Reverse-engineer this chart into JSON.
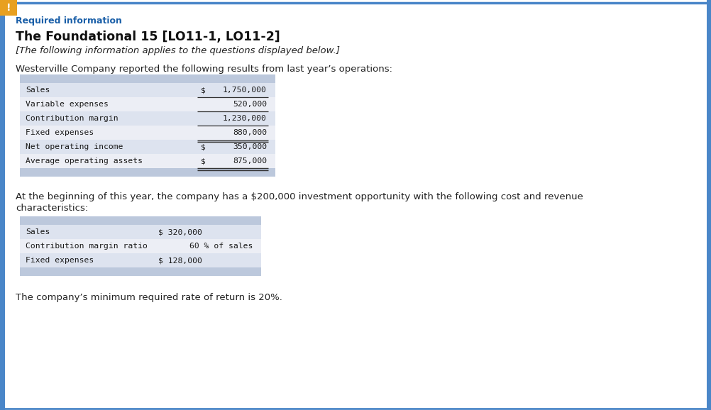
{
  "bg_color": "#ffffff",
  "border_color": "#4a86c8",
  "header_color": "#1a5fa8",
  "title_bold": "The Foundational 15 [LO11-1, LO11-2]",
  "required_info_label": "Required information",
  "italic_text": "[The following information applies to the questions displayed below.]",
  "intro_text": "Westerville Company reported the following results from last year’s operations:",
  "table1_header_bg": "#bcc8dc",
  "table1_row_bg_even": "#dde3ef",
  "table1_row_bg_odd": "#eceef5",
  "table1_rows": [
    [
      "Sales",
      "$ 1,750,000",
      false,
      false,
      false
    ],
    [
      "Variable expenses",
      "520,000",
      false,
      false,
      true
    ],
    [
      "Contribution margin",
      "1,230,000",
      false,
      false,
      true
    ],
    [
      "Fixed expenses",
      "880,000",
      false,
      false,
      true
    ],
    [
      "Net operating income",
      "$   350,000",
      true,
      false,
      false
    ],
    [
      "Average operating assets",
      "$   875,000",
      false,
      true,
      false
    ]
  ],
  "mid_text_line1": "At the beginning of this year, the company has a $200,000 investment opportunity with the following cost and revenue",
  "mid_text_line2": "characteristics:",
  "table2_header_bg": "#bcc8dc",
  "table2_row_bg_even": "#dde3ef",
  "table2_row_bg_odd": "#eceef5",
  "table2_rows": [
    [
      "Sales",
      "$ 320,000",
      ""
    ],
    [
      "Contribution margin ratio",
      "",
      "60 % of sales"
    ],
    [
      "Fixed expenses",
      "$ 128,000",
      ""
    ]
  ],
  "footer_text": "The company’s minimum required rate of return is 20%.",
  "exclamation_bg": "#e8a020",
  "exclamation_text": "!",
  "monospace_font": "DejaVu Sans Mono",
  "regular_font": "DejaVu Sans",
  "line_color": "#333333"
}
